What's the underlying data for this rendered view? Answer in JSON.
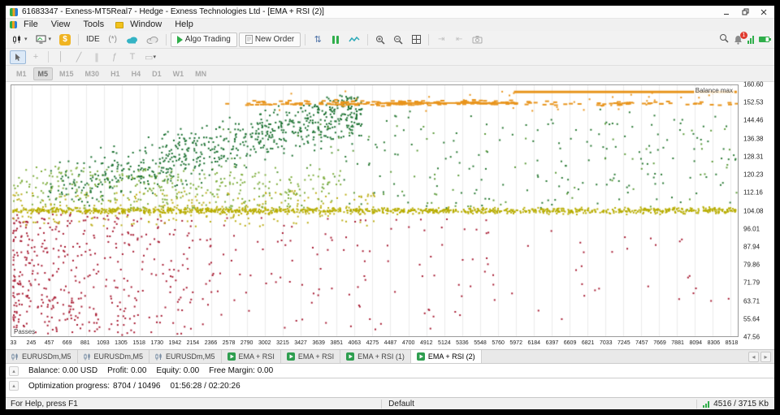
{
  "window": {
    "title": "61683347 - Exness-MT5Real7 - Hedge - Exness Technologies Ltd - [EMA + RSI (2)]"
  },
  "menu": {
    "items": [
      "File",
      "View",
      "Tools",
      "Window",
      "Help"
    ]
  },
  "toolbar": {
    "ide": "IDE",
    "algo_trading": "Algo Trading",
    "new_order": "New Order",
    "notification_count": "1"
  },
  "icons": {
    "caret": "▾",
    "dollar": "$",
    "algo_forge": "(*)",
    "depth": "⇅",
    "crosshair": "+",
    "vline": "│",
    "trendline": "╱",
    "channel": "∥",
    "fibo": "ƒ",
    "text_tool": "T",
    "shapes": "▭",
    "shift_in": "⇥",
    "shift_out": "⇤",
    "tab_scroll_left": "◂",
    "tab_scroll_right": "▸",
    "expander": "▴"
  },
  "timeframes": {
    "active": "M5",
    "items": [
      "M1",
      "M5",
      "M15",
      "M30",
      "H1",
      "H4",
      "D1",
      "W1",
      "MN"
    ]
  },
  "chart_data": {
    "type": "scatter",
    "title": "",
    "annotations": {
      "top_right": "Balance max",
      "bottom_left": "Passes"
    },
    "xlim": [
      0,
      8600
    ],
    "ylim": [
      47.56,
      160.6
    ],
    "x_ticks": [
      33,
      245,
      457,
      669,
      881,
      1093,
      1305,
      1518,
      1730,
      1942,
      2154,
      2366,
      2578,
      2790,
      3002,
      3215,
      3427,
      3639,
      3851,
      4063,
      4275,
      4487,
      4700,
      4912,
      5124,
      5336,
      5548,
      5760,
      5972,
      6184,
      6397,
      6609,
      6821,
      7033,
      7245,
      7457,
      7669,
      7881,
      8094,
      8306,
      8518
    ],
    "y_ticks": [
      "160.60",
      "152.53",
      "144.46",
      "136.38",
      "128.31",
      "120.23",
      "112.16",
      "104.08",
      "96.01",
      "87.94",
      "79.86",
      "71.79",
      "63.71",
      "55.64",
      "47.56"
    ],
    "grid": "vertical",
    "legend": "none",
    "point_colors": {
      "best": "#e8941c",
      "good": "#1a7030",
      "mid": "#7fae3e",
      "base": "#b8ad00",
      "poor": "#a81c33"
    },
    "clusters": [
      {
        "name": "poor-left",
        "shape": "cloud",
        "color": "#a81c33",
        "count": 430,
        "x": [
          20,
          2150
        ],
        "xbias": "left",
        "y": [
          48,
          103
        ]
      },
      {
        "name": "poor-mid",
        "shape": "cloud",
        "color": "#a81c33",
        "count": 120,
        "x": [
          2150,
          5750
        ],
        "y": [
          50,
          102
        ]
      },
      {
        "name": "poor-right",
        "shape": "cloud",
        "color": "#a81c33",
        "count": 28,
        "x": [
          5750,
          8590
        ],
        "y": [
          55,
          101
        ]
      },
      {
        "name": "base-fuzz",
        "shape": "cloud",
        "color": "#bcae18",
        "count": 240,
        "x": [
          20,
          4300
        ],
        "y": [
          97,
          113
        ]
      },
      {
        "name": "mid-green",
        "shape": "cloud",
        "color": "#7fae3e",
        "count": 360,
        "x": [
          20,
          3900
        ],
        "y": [
          104,
          124
        ]
      },
      {
        "name": "good-trend",
        "shape": "trend",
        "color": "#1a7030",
        "count": 700,
        "x": [
          430,
          4150
        ],
        "xbias": "right",
        "y0": 114,
        "y1": 148,
        "spread": 11,
        "ymax": 156
      },
      {
        "name": "good-right",
        "shape": "cloud",
        "color": "#2a7a35",
        "count": 170,
        "x": [
          3900,
          8590
        ],
        "y": [
          104,
          150
        ]
      },
      {
        "name": "mid-sparse",
        "shape": "cloud",
        "color": "#5d9b3a",
        "count": 90,
        "x": [
          2400,
          8590
        ],
        "y": [
          104,
          144
        ]
      },
      {
        "name": "base-band",
        "shape": "gauss-band",
        "color": "#b8ad00",
        "count": 1150,
        "x": [
          20,
          8590
        ],
        "yc": 104.1,
        "spread": 1.3
      },
      {
        "name": "best-dashes",
        "shape": "dash-band",
        "color": "#e8941c",
        "count": 150,
        "x": [
          2550,
          6350
        ],
        "yc": 152.6,
        "spread": 1.2
      },
      {
        "name": "best-dashes-right",
        "shape": "dash-band",
        "color": "#e8941c",
        "count": 40,
        "x": [
          6350,
          8590
        ],
        "yc": 152.4,
        "spread": 0.8
      },
      {
        "name": "best-sparse",
        "shape": "cloud",
        "color": "#e8941c",
        "count": 40,
        "x": [
          3000,
          8590
        ],
        "y": [
          149,
          158
        ]
      },
      {
        "name": "best-line",
        "shape": "hline",
        "color": "#e8941c",
        "x": [
          5950,
          8590
        ],
        "y": 157.6,
        "thickness": 3
      },
      {
        "name": "best-line-2",
        "shape": "hline",
        "color": "#e8941c",
        "x": [
          4420,
          6000
        ],
        "y": 152.6,
        "thickness": 2
      }
    ]
  },
  "tabs": {
    "active_index": 6,
    "items": [
      {
        "label": "EURUSDm,M5",
        "icon": "chart"
      },
      {
        "label": "EURUSDm,M5",
        "icon": "chart"
      },
      {
        "label": "EURUSDm,M5",
        "icon": "chart"
      },
      {
        "label": "EMA + RSI",
        "icon": "tester"
      },
      {
        "label": "EMA + RSI",
        "icon": "tester"
      },
      {
        "label": "EMA + RSI (1)",
        "icon": "tester"
      },
      {
        "label": "EMA + RSI (2)",
        "icon": "tester"
      }
    ]
  },
  "account_row": {
    "balance": "Balance: 0.00 USD",
    "profit": "Profit: 0.00",
    "equity": "Equity: 0.00",
    "free_margin": "Free Margin: 0.00"
  },
  "progress_row": {
    "label": "Optimization progress:",
    "counts": "8704 / 10496",
    "time": "01:56:28 / 02:20:26"
  },
  "statusbar": {
    "help": "For Help, press F1",
    "profile": "Default",
    "memory": "4516 / 3715 Kb"
  }
}
